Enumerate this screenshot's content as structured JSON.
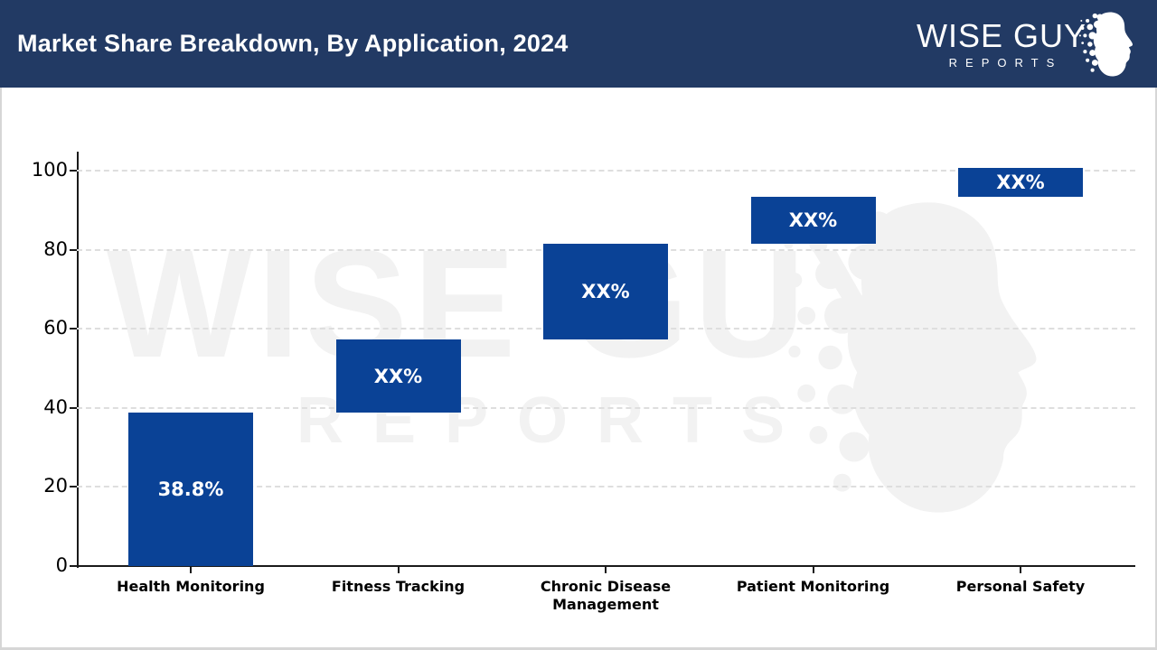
{
  "header": {
    "title": "Market Share Breakdown, By Application, 2024",
    "brand_line1": "WISE GUY",
    "brand_line2": "REPORTS",
    "bg_color": "#223A64"
  },
  "watermark": {
    "line1": "WISE GUY",
    "line2": "REPORTS"
  },
  "chart_data": {
    "type": "bar",
    "subtype": "waterfall",
    "title": "Market Share Breakdown, By Application, 2024",
    "unit": "%",
    "categories": [
      "Health Monitoring",
      "Fitness Tracking",
      "Chronic Disease Management",
      "Patient Monitoring",
      "Personal Safety"
    ],
    "segments": [
      [
        0,
        38.8
      ],
      [
        38.8,
        57.2
      ],
      [
        57.2,
        81.4
      ],
      [
        81.4,
        93.4
      ],
      [
        93.4,
        100.7
      ]
    ],
    "bar_labels": [
      "38.8%",
      "XX%",
      "XX%",
      "XX%",
      "XX%"
    ],
    "known_values_pct": {
      "Health Monitoring": 38.8
    },
    "yticks": [
      0,
      20,
      40,
      60,
      80,
      100
    ],
    "ylim": [
      0,
      105
    ],
    "bar_color": "#0A4296",
    "grid": {
      "horizontal": true,
      "style": "dashed",
      "color": "#DEDEDE"
    },
    "legend": null
  }
}
